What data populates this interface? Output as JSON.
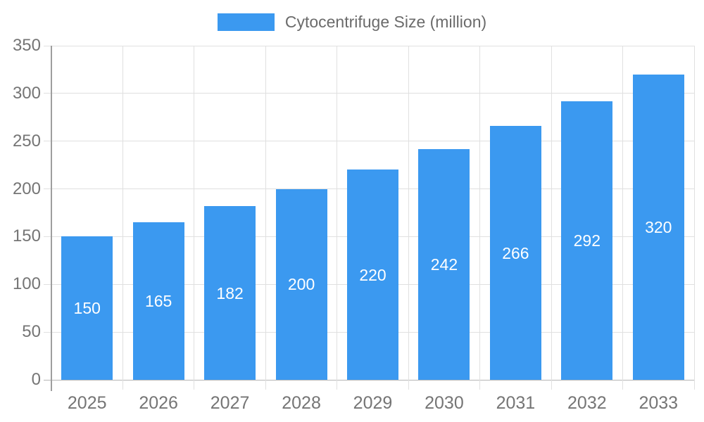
{
  "chart_data": {
    "type": "bar",
    "title": "Cytocentrifuge Size (million)",
    "legend_position": "top",
    "categories": [
      "2025",
      "2026",
      "2027",
      "2028",
      "2029",
      "2030",
      "2031",
      "2032",
      "2033"
    ],
    "series": [
      {
        "name": "Cytocentrifuge Size (million)",
        "values": [
          150,
          165,
          182,
          200,
          220,
          242,
          266,
          292,
          320
        ]
      }
    ],
    "value_labels_shown": true,
    "xlabel": "",
    "ylabel": "",
    "ylim": [
      0,
      350
    ],
    "ytick_step": 50,
    "yticks": [
      "0",
      "50",
      "100",
      "150",
      "200",
      "250",
      "300",
      "350"
    ],
    "grid": true,
    "colors": {
      "bar": "#3B99F0",
      "bar_value_label": "#ffffff",
      "axis_text": "#757575",
      "legend_text": "#6b6b6b",
      "gridline": "#e0e0e0",
      "x_axis_line": "#b5b5b5",
      "y_axis_line": "#9e9e9e",
      "background": "#ffffff"
    }
  }
}
